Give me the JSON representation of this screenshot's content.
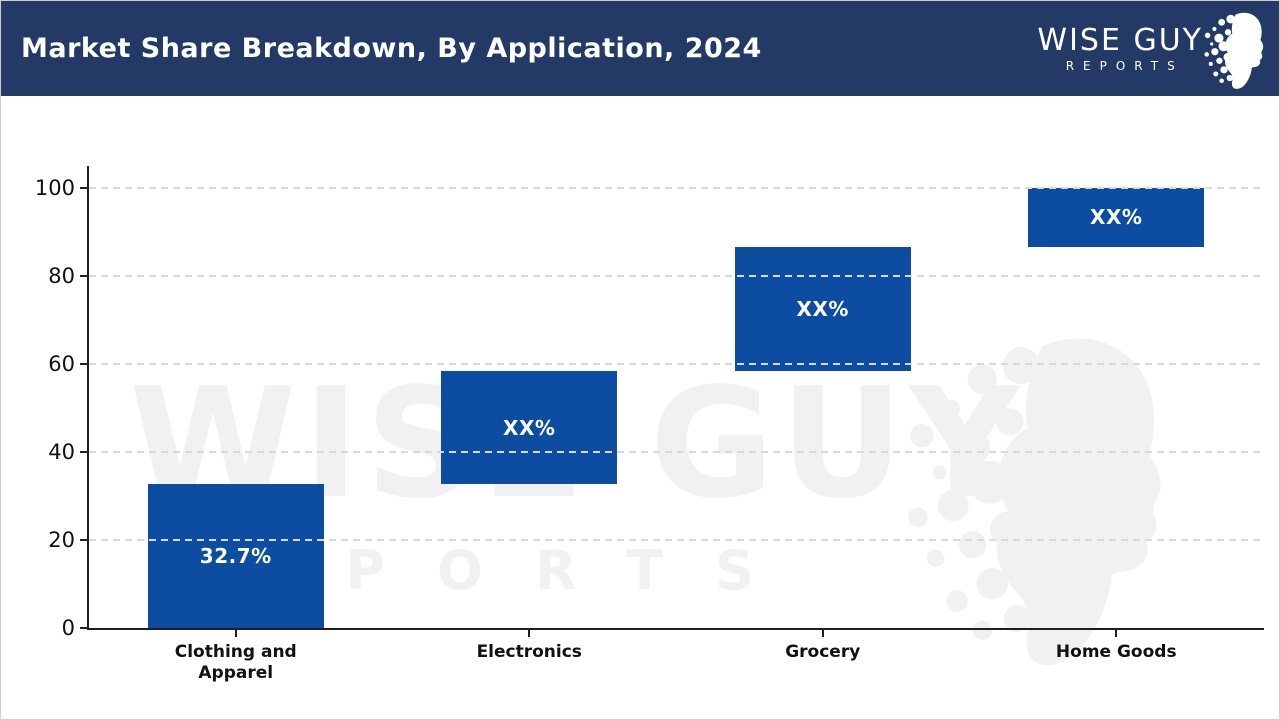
{
  "header": {
    "title": "Market Share Breakdown, By Application, 2024",
    "logo": {
      "line1": "WISE GUY",
      "line2": "REPORTS"
    }
  },
  "watermark": {
    "line1": "WISE GUY",
    "line2": "REPORTS"
  },
  "colors": {
    "header_bg": "#233a66",
    "bar": "#0c4da2",
    "bar_label": "#ffffff",
    "grid": "#d9d9d9",
    "axis": "#1f1f1f",
    "watermark": "#f1f1f4"
  },
  "chart_data": {
    "type": "bar",
    "subtype": "waterfall",
    "title": "Market Share Breakdown, By Application, 2024",
    "categories": [
      "Clothing and Apparel",
      "Electronics",
      "Grocery",
      "Home Goods"
    ],
    "segments": [
      {
        "category": "Clothing and Apparel",
        "start": 0,
        "end": 32.7,
        "label": "32.7%"
      },
      {
        "category": "Electronics",
        "start": 32.7,
        "end": 58.4,
        "label": "XX%"
      },
      {
        "category": "Grocery",
        "start": 58.4,
        "end": 86.6,
        "label": "XX%"
      },
      {
        "category": "Home Goods",
        "start": 86.6,
        "end": 100,
        "label": "XX%"
      }
    ],
    "yticks": [
      0,
      20,
      40,
      60,
      80,
      100
    ],
    "ylim": [
      0,
      105
    ],
    "xlabel": "",
    "ylabel": "",
    "grid": "dashed-horizontal",
    "legend": "none"
  }
}
